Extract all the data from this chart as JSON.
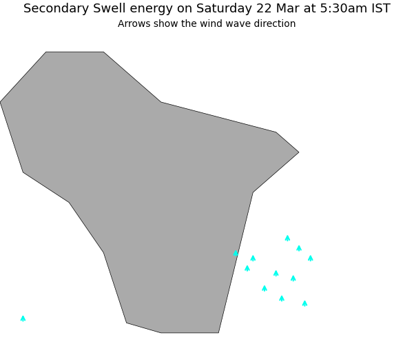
{
  "title": "Secondary Swell energy on Saturday 22 Mar at 5:30am IST",
  "subtitle": "Arrows show the wind wave direction",
  "title_fontsize": 13,
  "subtitle_fontsize": 10,
  "fig_width": 6.01,
  "fig_height": 5.12,
  "dpi": 100,
  "map_extent": [
    66,
    102,
    5,
    37
  ],
  "background_color": "#ffffff",
  "header_bg": "#f0f0f0",
  "ocean_color": "#000000",
  "land_color": "#aaaaaa",
  "arrow_color": "#00ffee",
  "arrows": [
    {
      "lon": 87.5,
      "lat": 13.5,
      "u": 0.0,
      "v": 1.0
    },
    {
      "lon": 90.0,
      "lat": 13.0,
      "u": 0.0,
      "v": 1.0
    },
    {
      "lon": 89.0,
      "lat": 11.5,
      "u": 0.0,
      "v": 1.0
    },
    {
      "lon": 91.5,
      "lat": 12.5,
      "u": 0.0,
      "v": 1.0
    },
    {
      "lon": 93.0,
      "lat": 14.5,
      "u": 0.0,
      "v": 1.0
    },
    {
      "lon": 92.0,
      "lat": 15.5,
      "u": 0.1,
      "v": 1.0
    },
    {
      "lon": 91.0,
      "lat": 16.5,
      "u": 0.0,
      "v": 1.0
    },
    {
      "lon": 88.0,
      "lat": 14.5,
      "u": 0.0,
      "v": 1.0
    },
    {
      "lon": 86.5,
      "lat": 15.0,
      "u": 0.0,
      "v": 1.0
    },
    {
      "lon": 90.5,
      "lat": 10.5,
      "u": 0.0,
      "v": 1.0
    },
    {
      "lon": 92.5,
      "lat": 10.0,
      "u": 0.0,
      "v": 1.0
    },
    {
      "lon": 68.0,
      "lat": 8.5,
      "u": 0.0,
      "v": 1.0
    }
  ]
}
